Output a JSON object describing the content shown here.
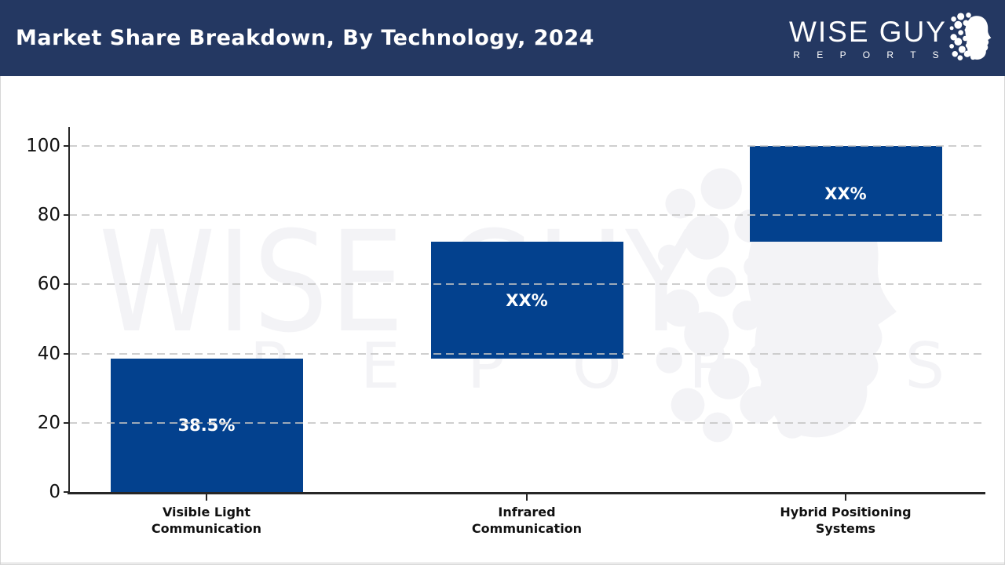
{
  "header": {
    "title": "Market Share Breakdown, By Technology, 2024",
    "logo": {
      "line1": "WISE GUY",
      "line2": "R E P O R T S"
    }
  },
  "watermark": {
    "line1": "WISE GUY",
    "line2": "R E P O R T S"
  },
  "colors": {
    "header_bg": "#243862",
    "bar_fill": "#03418E",
    "bar_label_text": "#FFFFFF",
    "axis": "#262626",
    "tick_text": "#111111",
    "gridline": "#C9C9C9",
    "watermark": "#F3F3F6"
  },
  "chart_data": {
    "type": "waterfall",
    "title": "Market Share Breakdown, By Technology, 2024",
    "categories": [
      "Visible Light\nCommunication",
      "Infrared\nCommunication",
      "Hybrid Positioning\nSystems"
    ],
    "bars": [
      {
        "category": "Visible Light\nCommunication",
        "start": 0,
        "end": 38.5,
        "label": "38.5%"
      },
      {
        "category": "Infrared\nCommunication",
        "start": 38.5,
        "end": 72.3,
        "label": "XX%"
      },
      {
        "category": "Hybrid Positioning\nSystems",
        "start": 72.3,
        "end": 100,
        "label": "XX%"
      }
    ],
    "yticks": [
      0,
      20,
      40,
      60,
      80,
      100
    ],
    "ylim": [
      0,
      100
    ],
    "xlabel": "",
    "ylabel": "",
    "grid": "horizontal-dashed",
    "legend": "none"
  }
}
